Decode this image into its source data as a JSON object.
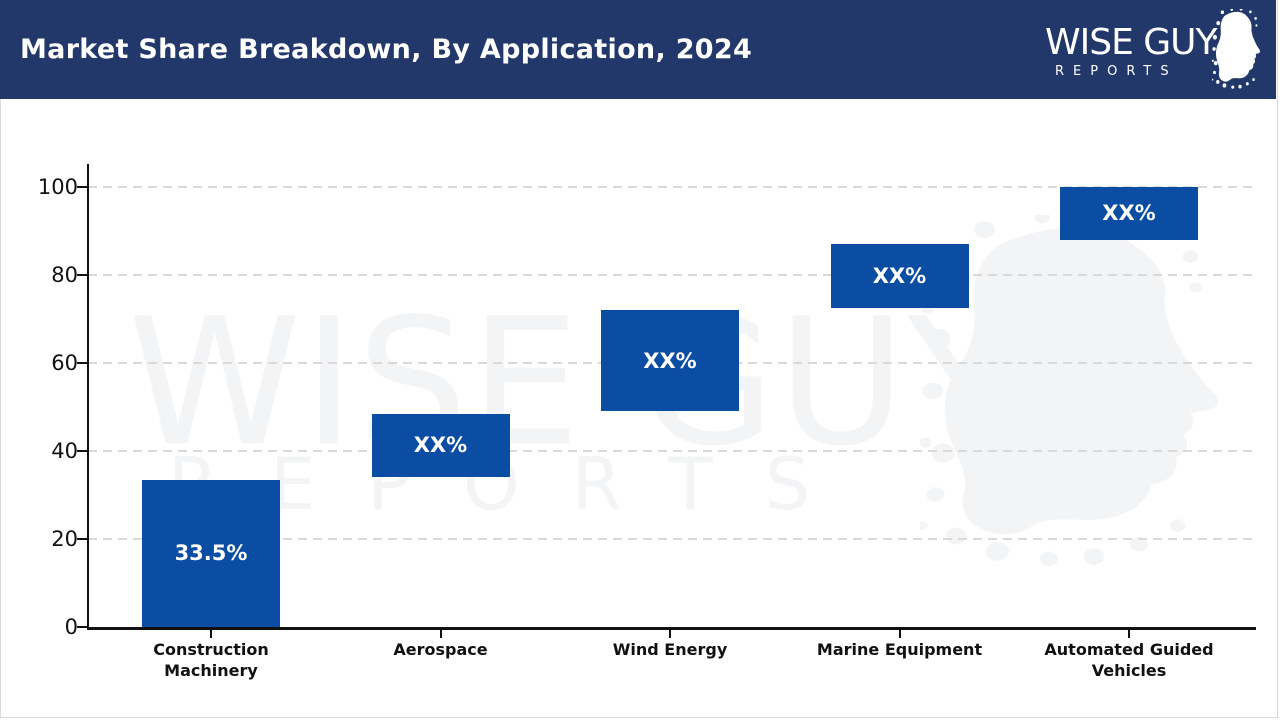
{
  "header": {
    "title": "Market Share Breakdown, By Application, 2024",
    "logo_primary": "WISE GUY",
    "logo_secondary": "REPORTS"
  },
  "watermark": {
    "line1": "WISE GUY",
    "line2": "REPORTS"
  },
  "colors": {
    "header_bg": "#22386a",
    "bar": "#0b4da2",
    "grid": "#d9d9d9",
    "axis": "#111111",
    "watermark": "#f3f4f6",
    "label_on_bar": "#ffffff"
  },
  "chart_data": {
    "type": "bar",
    "variant": "waterfall-floating-segments",
    "title": "Market Share Breakdown, By Application, 2024",
    "categories": [
      "Construction Machinery",
      "Aerospace",
      "Wind Energy",
      "Marine Equipment",
      "Automated Guided Vehicles"
    ],
    "segments": [
      {
        "category": "Construction Machinery",
        "start": 0,
        "end": 33.5,
        "label": "33.5%"
      },
      {
        "category": "Aerospace",
        "start": 34,
        "end": 48.5,
        "label": "XX%"
      },
      {
        "category": "Wind Energy",
        "start": 49,
        "end": 72,
        "label": "XX%"
      },
      {
        "category": "Marine Equipment",
        "start": 72.5,
        "end": 87,
        "label": "XX%"
      },
      {
        "category": "Automated Guided Vehicles",
        "start": 88,
        "end": 100,
        "label": "XX%"
      }
    ],
    "yticks": [
      0,
      20,
      40,
      60,
      80,
      100
    ],
    "ylim": [
      0,
      105.5
    ],
    "xlabel": "",
    "ylabel": "",
    "grid": "horizontal-dashed",
    "legend": null
  }
}
